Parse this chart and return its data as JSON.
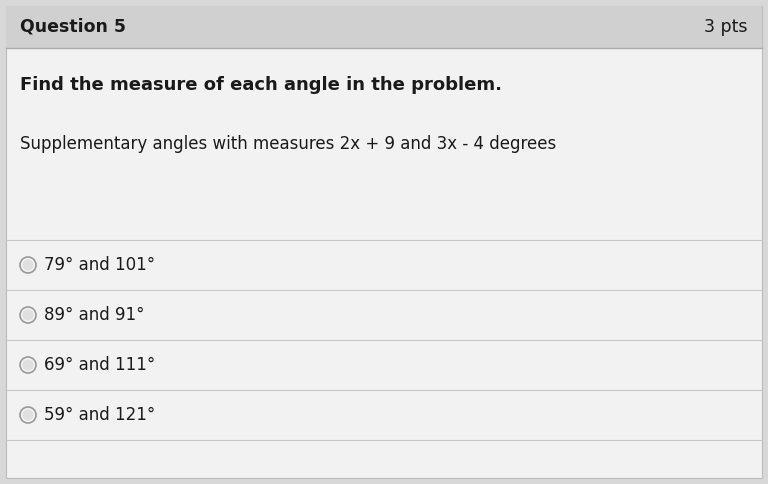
{
  "title_left": "Question 5",
  "title_right": "3 pts",
  "instruction": "Find the measure of each angle in the problem.",
  "problem": "Supplementary angles with measures 2x + 9 and 3x - 4 degrees",
  "options": [
    "79° and 101°",
    "89° and 91°",
    "69° and 111°",
    "59° and 121°"
  ],
  "bg_color": "#d8d8d8",
  "card_color": "#f2f2f2",
  "header_bg": "#d0d0d0",
  "title_fontsize": 12.5,
  "instruction_fontsize": 13,
  "problem_fontsize": 12,
  "option_fontsize": 12,
  "divider_color": "#c8c8c8",
  "text_color": "#1a1a1a",
  "radio_stroke": "#999999",
  "radio_fill": "#d4d4d4",
  "header_line_color": "#aaaaaa"
}
